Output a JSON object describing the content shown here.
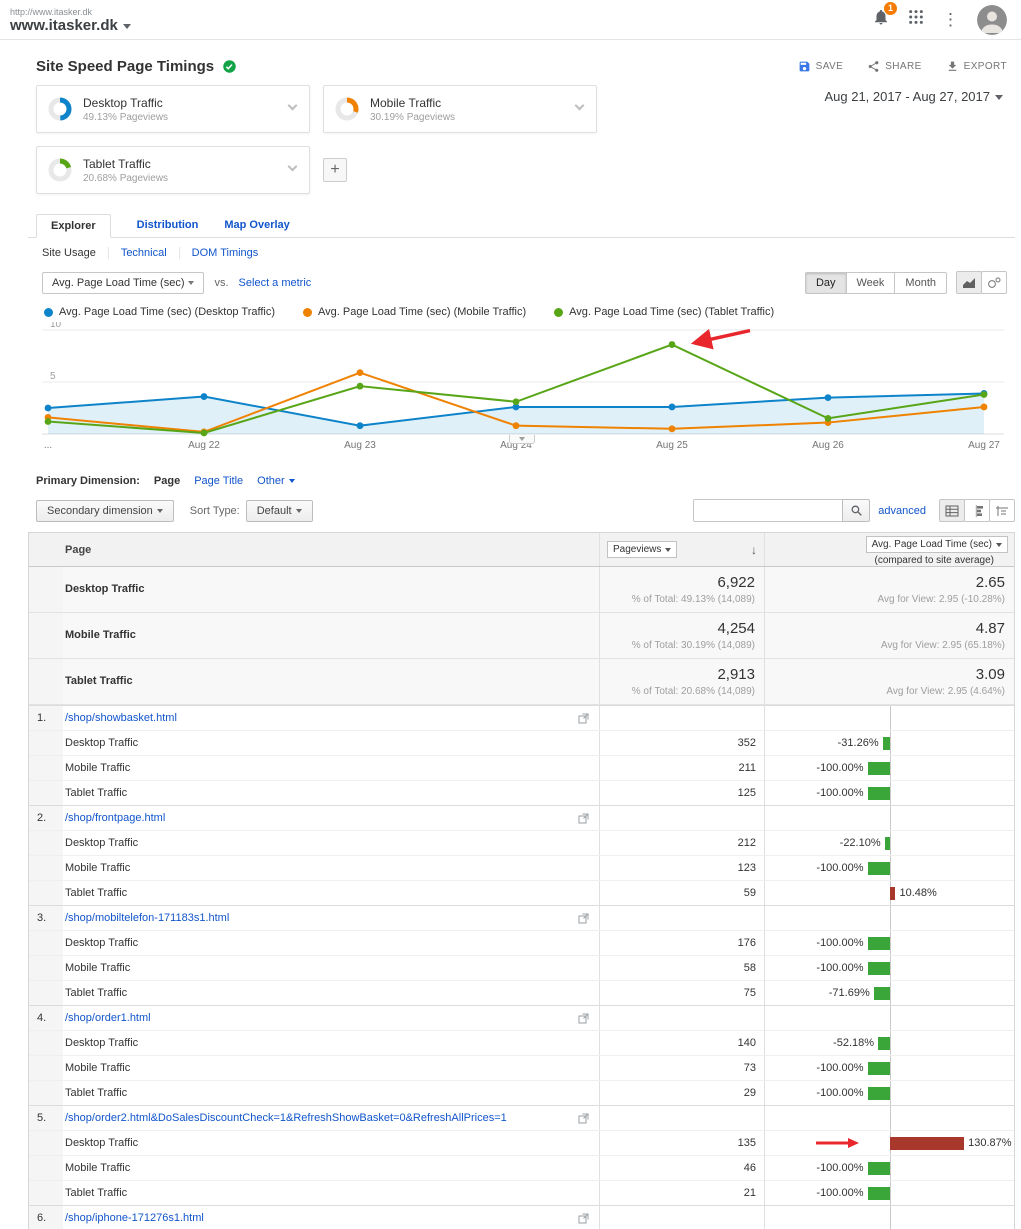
{
  "header": {
    "url_small": "http://www.itasker.dk",
    "account_name": "www.itasker.dk",
    "notification_count": "1"
  },
  "report": {
    "title": "Site Speed Page Timings",
    "actions": {
      "save": "SAVE",
      "share": "SHARE",
      "export": "EXPORT"
    },
    "date_range": "Aug 21, 2017 - Aug 27, 2017"
  },
  "segments": [
    {
      "name": "Desktop Traffic",
      "detail": "49.13% Pageviews",
      "pct": 49.13,
      "color": "#0d83c9"
    },
    {
      "name": "Mobile Traffic",
      "detail": "30.19% Pageviews",
      "pct": 30.19,
      "color": "#ef8200"
    },
    {
      "name": "Tablet Traffic",
      "detail": "20.68% Pageviews",
      "pct": 20.68,
      "color": "#58a618"
    }
  ],
  "segments_add": "+",
  "tabs": [
    "Explorer",
    "Distribution",
    "Map Overlay"
  ],
  "subtabs": [
    "Site Usage",
    "Technical",
    "DOM Timings"
  ],
  "controls": {
    "metric_dropdown": "Avg. Page Load Time (sec)",
    "vs": "vs.",
    "select_metric": "Select a metric",
    "granularity": [
      "Day",
      "Week",
      "Month"
    ]
  },
  "chart_data": {
    "type": "line",
    "categories": [
      "...",
      "Aug 22",
      "Aug 23",
      "Aug 24",
      "Aug 25",
      "Aug 26",
      "Aug 27"
    ],
    "series": [
      {
        "name": "Avg. Page Load Time (sec) (Desktop Traffic)",
        "color": "#0d83c9",
        "area": true,
        "values": [
          2.5,
          3.6,
          0.8,
          2.6,
          2.6,
          3.5,
          3.9
        ]
      },
      {
        "name": "Avg. Page Load Time (sec) (Mobile Traffic)",
        "color": "#ef8200",
        "area": false,
        "values": [
          1.6,
          0.2,
          5.9,
          0.8,
          0.5,
          1.1,
          2.6
        ]
      },
      {
        "name": "Avg. Page Load Time (sec) (Tablet Traffic)",
        "color": "#58a618",
        "area": false,
        "values": [
          1.2,
          0.1,
          4.6,
          3.1,
          8.6,
          1.5,
          3.8
        ]
      }
    ],
    "ylim": [
      0,
      10
    ],
    "yticks": [
      5,
      10
    ],
    "annotation": {
      "type": "arrow",
      "series": 2,
      "index": 4
    }
  },
  "dimension_bar": {
    "label": "Primary Dimension:",
    "options": [
      "Page",
      "Page Title",
      "Other"
    ]
  },
  "toolbar": {
    "secondary_dimension": "Secondary dimension",
    "sort_type_label": "Sort Type:",
    "sort_default": "Default",
    "advanced": "advanced",
    "search_value": ""
  },
  "icons": {
    "sort_descending": "↓",
    "overflow_menu": "⋮"
  },
  "colors": {
    "positive_bar": "#a8382c",
    "negative_bar": "#3aa63a",
    "annotation_arrow": "#e8262b",
    "link_blue": "#1155cc"
  },
  "table": {
    "headers": {
      "page": "Page",
      "pageviews": "Pageviews",
      "metric": "Avg. Page Load Time (sec)",
      "metric_sub": "(compared to site average)"
    },
    "summary": [
      {
        "name": "Desktop Traffic",
        "pageviews": "6,922",
        "pct_total": "% of Total: 49.13% (14,089)",
        "metric": "2.65",
        "avg_note": "Avg for View: 2.95 (-10.28%)"
      },
      {
        "name": "Mobile Traffic",
        "pageviews": "4,254",
        "pct_total": "% of Total: 30.19% (14,089)",
        "metric": "4.87",
        "avg_note": "Avg for View: 2.95 (65.18%)"
      },
      {
        "name": "Tablet Traffic",
        "pageviews": "2,913",
        "pct_total": "% of Total: 20.68% (14,089)",
        "metric": "3.09",
        "avg_note": "Avg for View: 2.95 (4.64%)"
      }
    ],
    "rows": [
      {
        "index": "1.",
        "page": "/shop/showbasket.html",
        "segments": [
          {
            "name": "Desktop Traffic",
            "pageviews": "352",
            "delta": -31.26,
            "delta_label": "-31.26%"
          },
          {
            "name": "Mobile Traffic",
            "pageviews": "211",
            "delta": -100.0,
            "delta_label": "-100.00%"
          },
          {
            "name": "Tablet Traffic",
            "pageviews": "125",
            "delta": -100.0,
            "delta_label": "-100.00%"
          }
        ]
      },
      {
        "index": "2.",
        "page": "/shop/frontpage.html",
        "segments": [
          {
            "name": "Desktop Traffic",
            "pageviews": "212",
            "delta": -22.1,
            "delta_label": "-22.10%"
          },
          {
            "name": "Mobile Traffic",
            "pageviews": "123",
            "delta": -100.0,
            "delta_label": "-100.00%"
          },
          {
            "name": "Tablet Traffic",
            "pageviews": "59",
            "delta": 10.48,
            "delta_label": "10.48%"
          }
        ]
      },
      {
        "index": "3.",
        "page": "/shop/mobiltelefon-171183s1.html",
        "segments": [
          {
            "name": "Desktop Traffic",
            "pageviews": "176",
            "delta": -100.0,
            "delta_label": "-100.00%"
          },
          {
            "name": "Mobile Traffic",
            "pageviews": "58",
            "delta": -100.0,
            "delta_label": "-100.00%"
          },
          {
            "name": "Tablet Traffic",
            "pageviews": "75",
            "delta": -71.69,
            "delta_label": "-71.69%"
          }
        ]
      },
      {
        "index": "4.",
        "page": "/shop/order1.html",
        "segments": [
          {
            "name": "Desktop Traffic",
            "pageviews": "140",
            "delta": -52.18,
            "delta_label": "-52.18%"
          },
          {
            "name": "Mobile Traffic",
            "pageviews": "73",
            "delta": -100.0,
            "delta_label": "-100.00%"
          },
          {
            "name": "Tablet Traffic",
            "pageviews": "29",
            "delta": -100.0,
            "delta_label": "-100.00%"
          }
        ]
      },
      {
        "index": "5.",
        "page": "/shop/order2.html&DoSalesDiscountCheck=1&RefreshShowBasket=0&RefreshAllPrices=1",
        "segments": [
          {
            "name": "Desktop Traffic",
            "pageviews": "135",
            "delta": 130.87,
            "delta_label": "130.87%",
            "arrow": true
          },
          {
            "name": "Mobile Traffic",
            "pageviews": "46",
            "delta": -100.0,
            "delta_label": "-100.00%"
          },
          {
            "name": "Tablet Traffic",
            "pageviews": "21",
            "delta": -100.0,
            "delta_label": "-100.00%"
          }
        ]
      },
      {
        "index": "6.",
        "page": "/shop/iphone-171276s1.html",
        "segments": []
      }
    ]
  }
}
